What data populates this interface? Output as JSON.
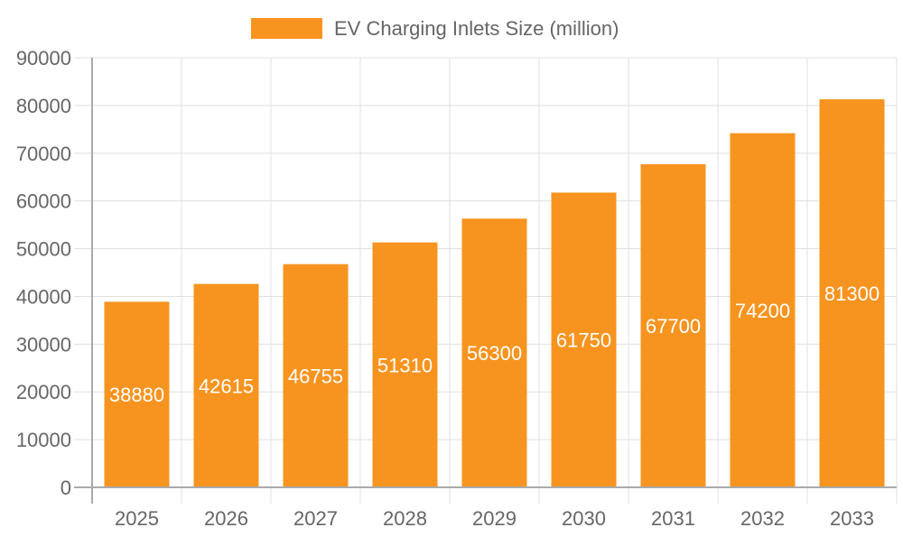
{
  "chart_data": {
    "type": "bar",
    "title": "",
    "xlabel": "",
    "ylabel": "",
    "categories": [
      "2025",
      "2026",
      "2027",
      "2028",
      "2029",
      "2030",
      "2031",
      "2032",
      "2033"
    ],
    "series": [
      {
        "name": "EV Charging Inlets Size (million)",
        "values": [
          38880,
          42615,
          46755,
          51310,
          56300,
          61750,
          67700,
          74200,
          81300
        ],
        "color": "#f7941f"
      }
    ],
    "ylim": [
      0,
      90000
    ],
    "yticks": [
      0,
      10000,
      20000,
      30000,
      40000,
      50000,
      60000,
      70000,
      80000,
      90000
    ],
    "grid": true,
    "legend": "top-center",
    "data_labels": "inside-center"
  }
}
